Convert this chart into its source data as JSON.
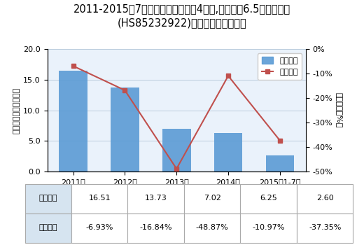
{
  "title_line1": "2011-2015年7月未录制的宽度超过4毫米,但不超过6.5毫米的磁带",
  "title_line2": "(HS85232922)进口总额及增速统计",
  "categories": [
    "2011年",
    "2012年",
    "2013年",
    "2014年",
    "2015年1-7月"
  ],
  "bar_values": [
    16.51,
    13.73,
    7.02,
    6.25,
    2.6
  ],
  "line_values": [
    -6.93,
    -16.84,
    -48.87,
    -10.97,
    -37.35
  ],
  "bar_color": "#5B9BD5",
  "line_color": "#C0504D",
  "ylabel_left": "进口金额（百万美元）",
  "ylabel_right": "同比增长（%）",
  "ylim_left": [
    0,
    20
  ],
  "ylim_right": [
    -50,
    0
  ],
  "yticks_left": [
    0.0,
    5.0,
    10.0,
    15.0,
    20.0
  ],
  "yticks_right": [
    0,
    -10,
    -20,
    -30,
    -40,
    -50
  ],
  "ytick_labels_right": [
    "0%",
    "-10%",
    "-20%",
    "-30%",
    "-40%",
    "-50%"
  ],
  "legend_bar": "进口金额",
  "legend_line": "同比增长",
  "table_row1_label": "进口金额",
  "table_row2_label": "同比增长",
  "table_row1_values": [
    "16.51",
    "13.73",
    "7.02",
    "6.25",
    "2.60"
  ],
  "table_row2_values": [
    "-6.93%",
    "-16.84%",
    "-48.87%",
    "-10.97%",
    "-37.35%"
  ],
  "bg_color": "#FFFFFF",
  "plot_bg_color": "#EAF2FB",
  "grid_color": "#BBCCDD",
  "title_fontsize": 10.5,
  "axis_fontsize": 8,
  "tick_fontsize": 8,
  "table_fontsize": 8
}
